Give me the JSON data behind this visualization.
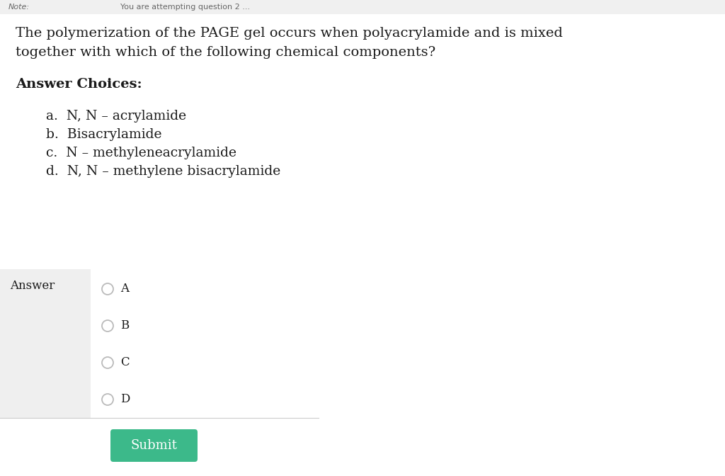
{
  "bg_color": "#ffffff",
  "header_bar_color": "#f0f0f0",
  "question_line1": "The polymerization of the PAGE gel occurs when polyacrylamide and is mixed",
  "question_line2": "together with which of the following chemical components?",
  "answer_choices_label": "Answer Choices:",
  "choices": [
    "a.  N, N – acrylamide",
    "b.  Bisacrylamide",
    "c.  N – methyleneacrylamide",
    "d.  N, N – methylene bisacrylamide"
  ],
  "answer_label": "Answer",
  "radio_labels": [
    "A",
    "B",
    "C",
    "D"
  ],
  "submit_text": "Submit",
  "submit_bg": "#3cb98a",
  "submit_text_color": "#ffffff",
  "text_color": "#1a1a1a",
  "gray_text": "#666666",
  "radio_color": "#bbbbbb",
  "answer_panel_bg": "#efefef",
  "divider_color": "#cccccc",
  "header_text_left": "Note:",
  "header_text_right": "You are attempting question 2 ..."
}
